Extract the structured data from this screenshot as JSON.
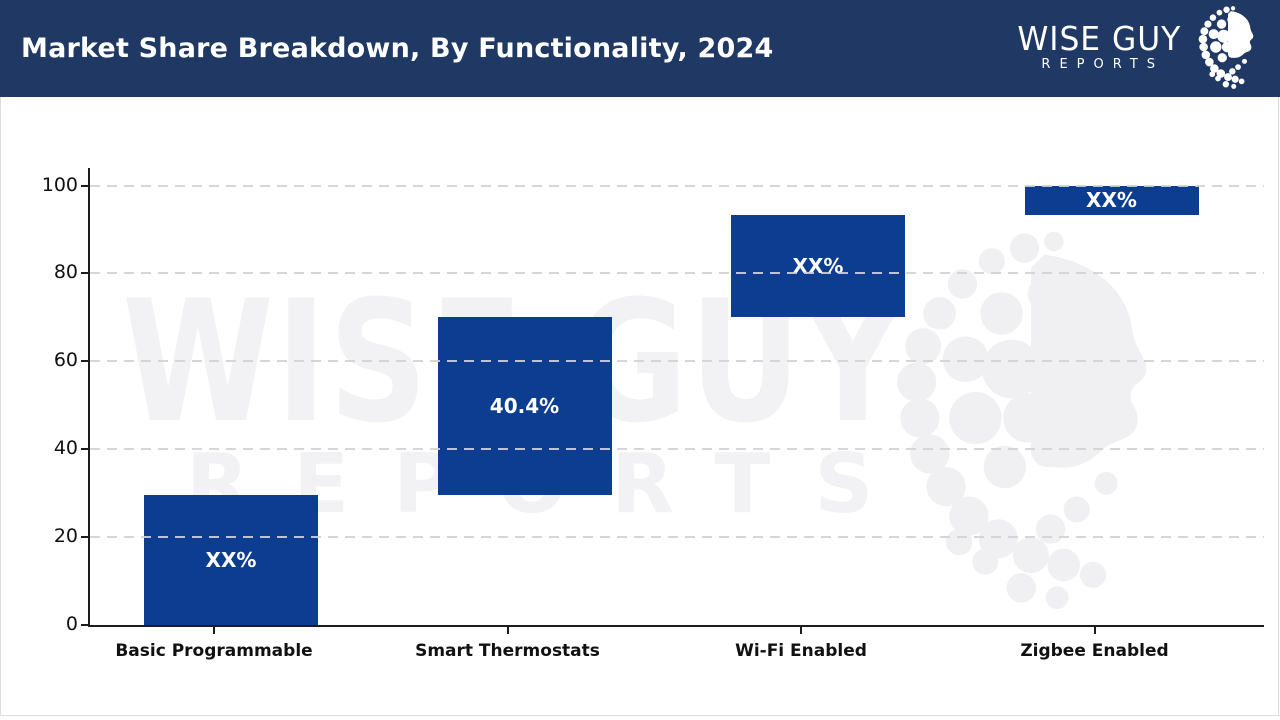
{
  "header": {
    "title": "Market Share Breakdown, By Functionality, 2024",
    "bg_color": "#1f3864",
    "logo_line1": "WISE GUY",
    "logo_line2": "REPORTS"
  },
  "watermark": {
    "line1": "WISE GUY",
    "line2": "REPORTS"
  },
  "chart_data": {
    "type": "bar",
    "subtype": "floating-waterfall-bars",
    "title": "Market Share Breakdown, By Functionality, 2024",
    "categories": [
      "Basic Programmable",
      "Smart Thermostats",
      "Wi-Fi Enabled",
      "Zigbee Enabled"
    ],
    "series": [
      {
        "name": "Market share (%)",
        "segments": [
          {
            "category": "Basic Programmable",
            "start": 0,
            "end": 29.6,
            "label": "XX%"
          },
          {
            "category": "Smart Thermostats",
            "start": 29.6,
            "end": 70,
            "label": "40.4%"
          },
          {
            "category": "Wi-Fi Enabled",
            "start": 70,
            "end": 93.3,
            "label": "XX%"
          },
          {
            "category": "Zigbee Enabled",
            "start": 93.3,
            "end": 100,
            "label": "XX%"
          }
        ]
      }
    ],
    "yticks": [
      0,
      20,
      40,
      60,
      80,
      100
    ],
    "ylim": [
      0,
      104
    ],
    "xlabel": "",
    "ylabel": "",
    "bar_color": "#0d3d91",
    "label_color": "#ffffff",
    "grid": "horizontal-dashed",
    "legend": "none"
  }
}
